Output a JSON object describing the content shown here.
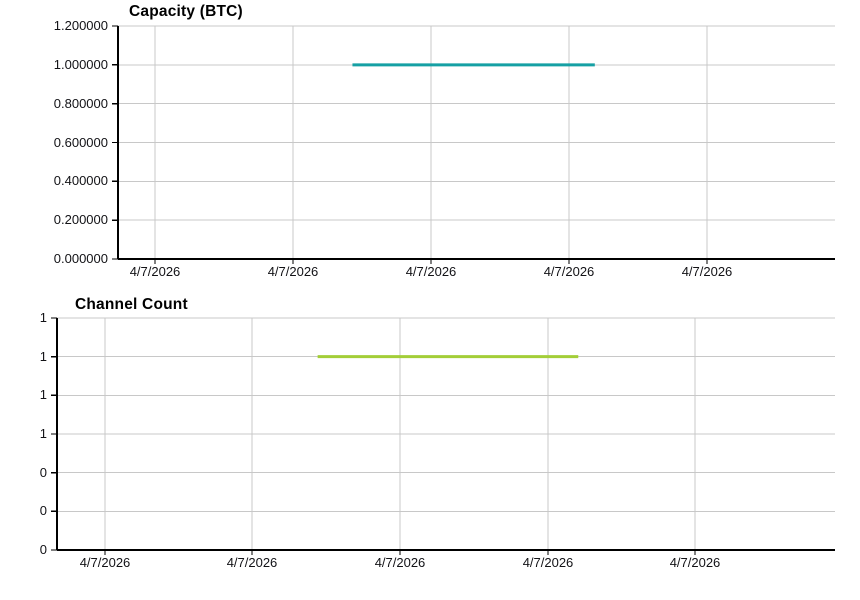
{
  "page": {
    "background": "#ffffff"
  },
  "colors": {
    "gridline": "#c8c8c8",
    "axis": "#000000",
    "tick_text": "#121216",
    "title_text": "#000000",
    "capacity_series": "#16a0a4",
    "channel_series": "#a3ce38"
  },
  "chart_data": [
    {
      "type": "line",
      "title": "Capacity (BTC)",
      "xlabel": "",
      "ylabel": "",
      "ylim": [
        0,
        1.2
      ],
      "grid": true,
      "legend": "none",
      "y_ticks": [
        "1.200000",
        "1.000000",
        "0.800000",
        "0.600000",
        "0.400000",
        "0.200000",
        "0.000000"
      ],
      "x_ticks": [
        "4/7/2026",
        "4/7/2026",
        "4/7/2026",
        "4/7/2026",
        "4/7/2026"
      ],
      "series": [
        {
          "name": "Capacity (BTC)",
          "color": "#16a0a4",
          "shape": "horizontal-segment",
          "y_value": 1.0,
          "x_span_frac": [
            0.327,
            0.665
          ],
          "points": [
            {
              "x": "4/7/2026",
              "y": 1.0
            },
            {
              "x": "4/7/2026",
              "y": 1.0
            }
          ]
        }
      ]
    },
    {
      "type": "line",
      "title": "Channel Count",
      "xlabel": "",
      "ylabel": "",
      "ylim": [
        0,
        1.2
      ],
      "grid": true,
      "legend": "none",
      "y_ticks": [
        "1",
        "1",
        "1",
        "1",
        "0",
        "0",
        "0"
      ],
      "x_ticks": [
        "4/7/2026",
        "4/7/2026",
        "4/7/2026",
        "4/7/2026",
        "4/7/2026"
      ],
      "series": [
        {
          "name": "Channel Count",
          "color": "#a3ce38",
          "shape": "horizontal-segment",
          "y_value": 1.0,
          "x_span_frac": [
            0.335,
            0.67
          ],
          "points": [
            {
              "x": "4/7/2026",
              "y": 1
            },
            {
              "x": "4/7/2026",
              "y": 1
            }
          ]
        }
      ]
    }
  ]
}
